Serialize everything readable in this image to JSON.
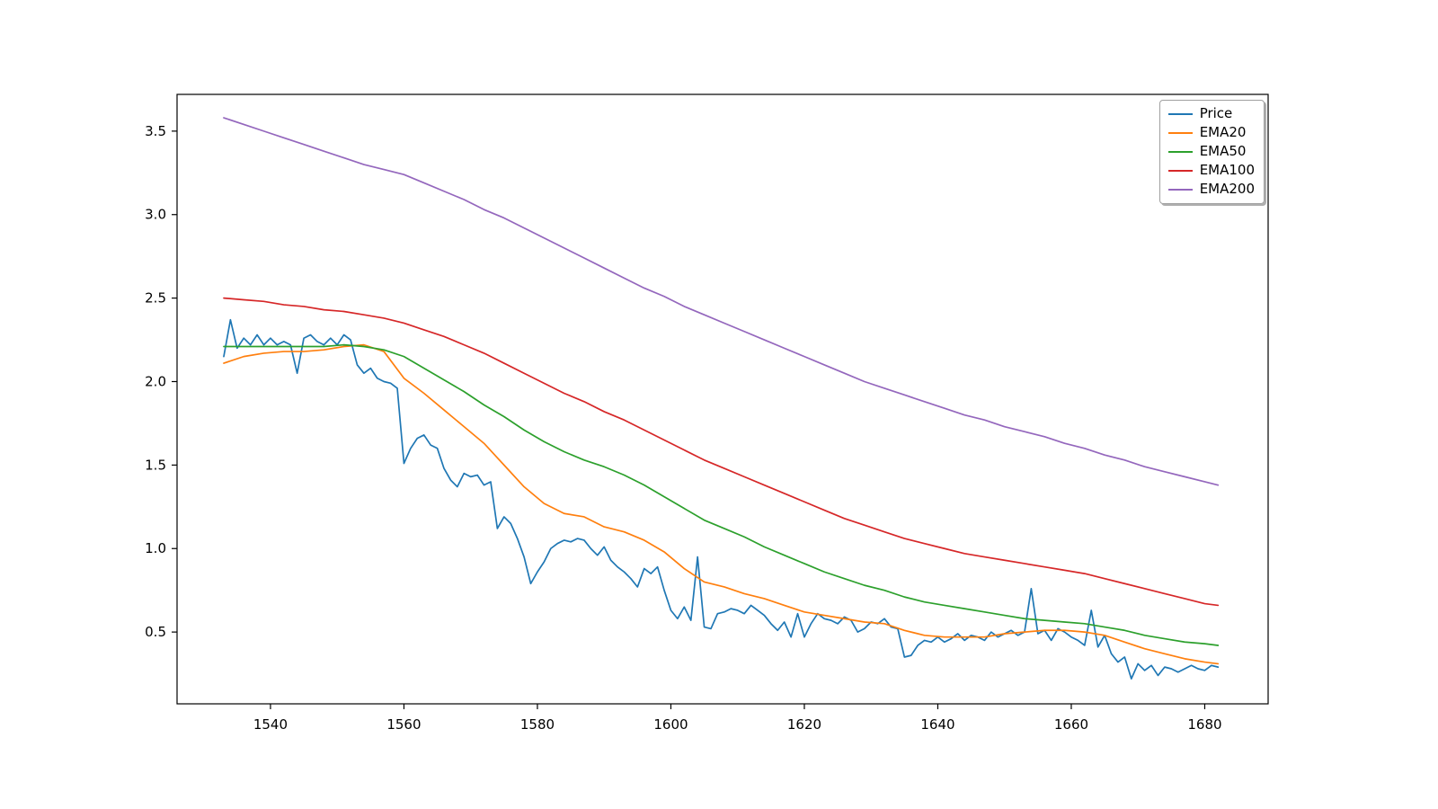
{
  "figure": {
    "background": "#ffffff"
  },
  "chart_data": {
    "type": "line",
    "title": "",
    "xlabel": "",
    "ylabel": "",
    "grid": false,
    "legend_position": "upper right",
    "xlim": [
      1526,
      1689.5
    ],
    "ylim": [
      0.07,
      3.72
    ],
    "xticks": [
      1540,
      1560,
      1580,
      1600,
      1620,
      1640,
      1660,
      1680
    ],
    "yticks": [
      0.5,
      1.0,
      1.5,
      2.0,
      2.5,
      3.0,
      3.5
    ],
    "series": [
      {
        "name": "Price",
        "color": "#1f77b4",
        "x_start": 1533,
        "x_step": 1,
        "y": [
          2.15,
          2.37,
          2.2,
          2.26,
          2.22,
          2.28,
          2.22,
          2.26,
          2.22,
          2.24,
          2.22,
          2.05,
          2.26,
          2.28,
          2.24,
          2.22,
          2.26,
          2.22,
          2.28,
          2.25,
          2.1,
          2.05,
          2.08,
          2.02,
          2.0,
          1.99,
          1.96,
          1.51,
          1.6,
          1.66,
          1.68,
          1.62,
          1.6,
          1.48,
          1.41,
          1.37,
          1.45,
          1.43,
          1.44,
          1.38,
          1.4,
          1.12,
          1.19,
          1.15,
          1.06,
          0.95,
          0.79,
          0.86,
          0.92,
          1.0,
          1.03,
          1.05,
          1.04,
          1.06,
          1.05,
          1.0,
          0.96,
          1.01,
          0.93,
          0.89,
          0.86,
          0.82,
          0.77,
          0.88,
          0.85,
          0.89,
          0.75,
          0.63,
          0.58,
          0.65,
          0.57,
          0.95,
          0.53,
          0.52,
          0.61,
          0.62,
          0.64,
          0.63,
          0.61,
          0.66,
          0.63,
          0.6,
          0.55,
          0.51,
          0.56,
          0.47,
          0.61,
          0.47,
          0.55,
          0.61,
          0.58,
          0.57,
          0.55,
          0.59,
          0.57,
          0.5,
          0.52,
          0.56,
          0.55,
          0.58,
          0.53,
          0.52,
          0.35,
          0.36,
          0.42,
          0.45,
          0.44,
          0.47,
          0.44,
          0.46,
          0.49,
          0.45,
          0.48,
          0.47,
          0.45,
          0.5,
          0.47,
          0.49,
          0.51,
          0.48,
          0.5,
          0.76,
          0.49,
          0.51,
          0.45,
          0.52,
          0.5,
          0.47,
          0.45,
          0.42,
          0.63,
          0.41,
          0.48,
          0.37,
          0.32,
          0.35,
          0.22,
          0.31,
          0.27,
          0.3,
          0.24,
          0.29,
          0.28,
          0.26,
          0.28,
          0.3,
          0.28,
          0.27,
          0.3,
          0.29
        ]
      },
      {
        "name": "EMA20",
        "color": "#ff7f0e",
        "x": [
          1533,
          1536,
          1539,
          1542,
          1545,
          1548,
          1551,
          1554,
          1557,
          1560,
          1563,
          1566,
          1569,
          1572,
          1575,
          1578,
          1581,
          1584,
          1587,
          1590,
          1593,
          1596,
          1599,
          1602,
          1605,
          1608,
          1611,
          1614,
          1617,
          1620,
          1623,
          1626,
          1629,
          1632,
          1635,
          1638,
          1641,
          1644,
          1647,
          1650,
          1653,
          1656,
          1659,
          1662,
          1665,
          1668,
          1671,
          1674,
          1677,
          1680,
          1682
        ],
        "y": [
          2.11,
          2.15,
          2.17,
          2.18,
          2.18,
          2.19,
          2.21,
          2.22,
          2.18,
          2.02,
          1.93,
          1.83,
          1.73,
          1.63,
          1.5,
          1.37,
          1.27,
          1.21,
          1.19,
          1.13,
          1.1,
          1.05,
          0.98,
          0.88,
          0.8,
          0.77,
          0.73,
          0.7,
          0.66,
          0.62,
          0.6,
          0.58,
          0.56,
          0.55,
          0.51,
          0.48,
          0.47,
          0.47,
          0.47,
          0.49,
          0.5,
          0.51,
          0.51,
          0.5,
          0.48,
          0.44,
          0.4,
          0.37,
          0.34,
          0.32,
          0.31
        ]
      },
      {
        "name": "EMA50",
        "color": "#2ca02c",
        "x": [
          1533,
          1536,
          1539,
          1542,
          1545,
          1548,
          1551,
          1554,
          1557,
          1560,
          1563,
          1566,
          1569,
          1572,
          1575,
          1578,
          1581,
          1584,
          1587,
          1590,
          1593,
          1596,
          1599,
          1602,
          1605,
          1608,
          1611,
          1614,
          1617,
          1620,
          1623,
          1626,
          1629,
          1632,
          1635,
          1638,
          1641,
          1644,
          1647,
          1650,
          1653,
          1656,
          1659,
          1662,
          1665,
          1668,
          1671,
          1674,
          1677,
          1680,
          1682
        ],
        "y": [
          2.21,
          2.21,
          2.21,
          2.21,
          2.21,
          2.21,
          2.22,
          2.21,
          2.19,
          2.15,
          2.08,
          2.01,
          1.94,
          1.86,
          1.79,
          1.71,
          1.64,
          1.58,
          1.53,
          1.49,
          1.44,
          1.38,
          1.31,
          1.24,
          1.17,
          1.12,
          1.07,
          1.01,
          0.96,
          0.91,
          0.86,
          0.82,
          0.78,
          0.75,
          0.71,
          0.68,
          0.66,
          0.64,
          0.62,
          0.6,
          0.58,
          0.57,
          0.56,
          0.55,
          0.53,
          0.51,
          0.48,
          0.46,
          0.44,
          0.43,
          0.42
        ]
      },
      {
        "name": "EMA100",
        "color": "#d62728",
        "x": [
          1533,
          1536,
          1539,
          1542,
          1545,
          1548,
          1551,
          1554,
          1557,
          1560,
          1563,
          1566,
          1569,
          1572,
          1575,
          1578,
          1581,
          1584,
          1587,
          1590,
          1593,
          1596,
          1599,
          1602,
          1605,
          1608,
          1611,
          1614,
          1617,
          1620,
          1623,
          1626,
          1629,
          1632,
          1635,
          1638,
          1641,
          1644,
          1647,
          1650,
          1653,
          1656,
          1659,
          1662,
          1665,
          1668,
          1671,
          1674,
          1677,
          1680,
          1682
        ],
        "y": [
          2.5,
          2.49,
          2.48,
          2.46,
          2.45,
          2.43,
          2.42,
          2.4,
          2.38,
          2.35,
          2.31,
          2.27,
          2.22,
          2.17,
          2.11,
          2.05,
          1.99,
          1.93,
          1.88,
          1.82,
          1.77,
          1.71,
          1.65,
          1.59,
          1.53,
          1.48,
          1.43,
          1.38,
          1.33,
          1.28,
          1.23,
          1.18,
          1.14,
          1.1,
          1.06,
          1.03,
          1.0,
          0.97,
          0.95,
          0.93,
          0.91,
          0.89,
          0.87,
          0.85,
          0.82,
          0.79,
          0.76,
          0.73,
          0.7,
          0.67,
          0.66
        ]
      },
      {
        "name": "EMA200",
        "color": "#9467bd",
        "x": [
          1533,
          1536,
          1539,
          1542,
          1545,
          1548,
          1551,
          1554,
          1557,
          1560,
          1563,
          1566,
          1569,
          1572,
          1575,
          1578,
          1581,
          1584,
          1587,
          1590,
          1593,
          1596,
          1599,
          1602,
          1605,
          1608,
          1611,
          1614,
          1617,
          1620,
          1623,
          1626,
          1629,
          1632,
          1635,
          1638,
          1641,
          1644,
          1647,
          1650,
          1653,
          1656,
          1659,
          1662,
          1665,
          1668,
          1671,
          1674,
          1677,
          1680,
          1682
        ],
        "y": [
          3.58,
          3.54,
          3.5,
          3.46,
          3.42,
          3.38,
          3.34,
          3.3,
          3.27,
          3.24,
          3.19,
          3.14,
          3.09,
          3.03,
          2.98,
          2.92,
          2.86,
          2.8,
          2.74,
          2.68,
          2.62,
          2.56,
          2.51,
          2.45,
          2.4,
          2.35,
          2.3,
          2.25,
          2.2,
          2.15,
          2.1,
          2.05,
          2.0,
          1.96,
          1.92,
          1.88,
          1.84,
          1.8,
          1.77,
          1.73,
          1.7,
          1.67,
          1.63,
          1.6,
          1.56,
          1.53,
          1.49,
          1.46,
          1.43,
          1.4,
          1.38
        ]
      }
    ]
  }
}
